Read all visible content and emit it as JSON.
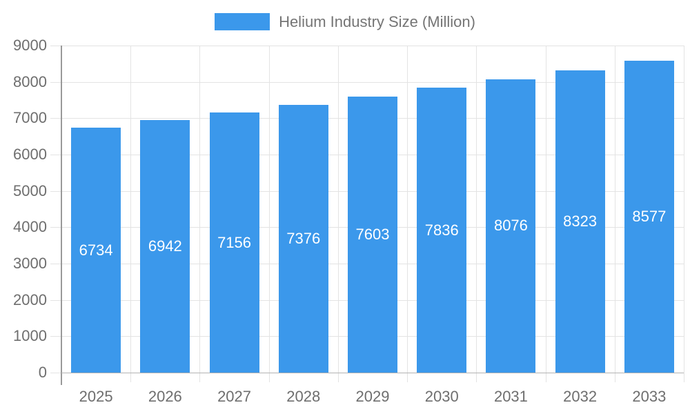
{
  "chart_data": {
    "type": "bar",
    "title": "Helium Industry Size (Million)",
    "categories": [
      "2025",
      "2026",
      "2027",
      "2028",
      "2029",
      "2030",
      "2031",
      "2032",
      "2033"
    ],
    "series": [
      {
        "name": "Helium Industry Size (Million)",
        "values": [
          6734,
          6942,
          7156,
          7376,
          7603,
          7836,
          8076,
          8323,
          8577
        ]
      }
    ],
    "xlabel": "",
    "ylabel": "",
    "ylim": [
      0,
      9000
    ],
    "yticks": [
      0,
      1000,
      2000,
      3000,
      4000,
      5000,
      6000,
      7000,
      8000,
      9000
    ],
    "grid": true,
    "legend_position": "top",
    "value_label_position": "inside-center",
    "colors": {
      "bar": "#3b98eb",
      "grid": "#e3e3e3",
      "y_axis": "#999999",
      "x_axis": "#b3b3b3",
      "tick_label": "#6e6e6e",
      "legend_label": "#757575",
      "value_label": "#ffffff",
      "background": "#ffffff"
    }
  }
}
